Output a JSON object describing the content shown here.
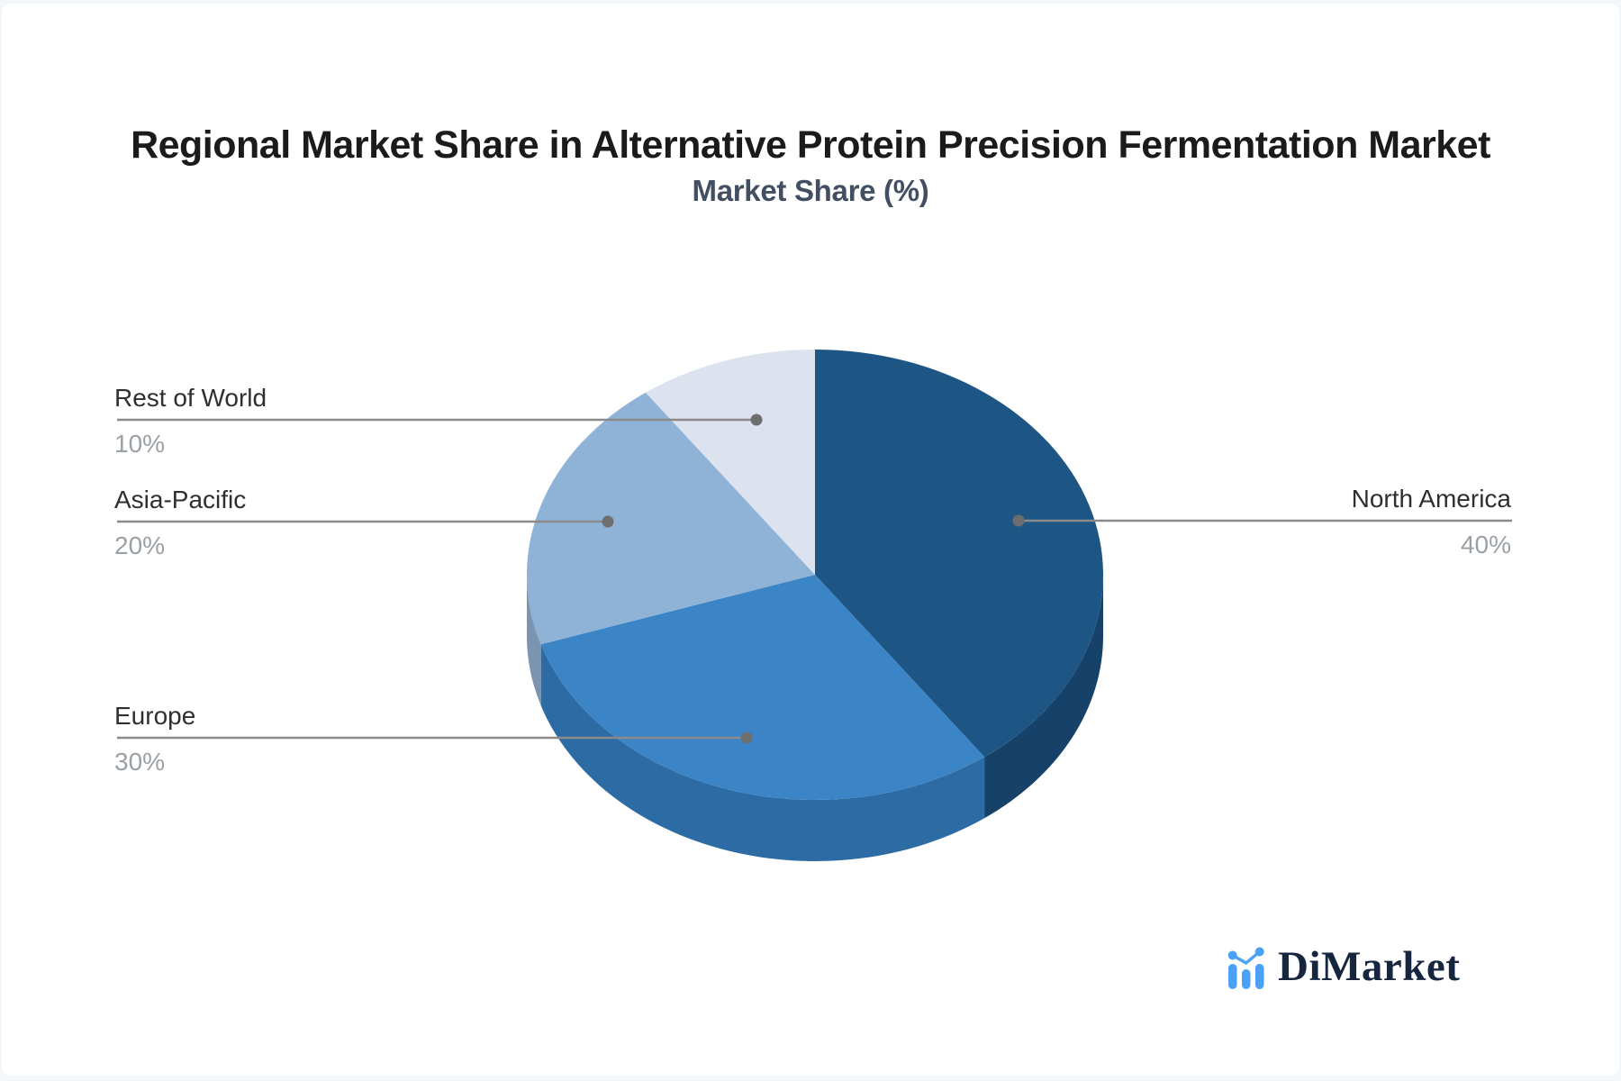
{
  "title": "Regional Market Share in Alternative Protein Precision Fermentation Market",
  "subtitle": "Market Share (%)",
  "chart_data": {
    "type": "pie",
    "title": "Regional Market Share in Alternative Protein Precision Fermentation Market",
    "subtitle": "Market Share (%)",
    "unit": "%",
    "style": "3d-pie",
    "start_angle_deg": 90,
    "direction": "clockwise",
    "legend_position": "callout-labels",
    "labels": [
      "North America",
      "Europe",
      "Asia-Pacific",
      "Rest of World"
    ],
    "values": [
      40,
      30,
      20,
      10
    ],
    "display_values": [
      "40%",
      "30%",
      "20%",
      "10%"
    ],
    "colors": [
      "#1D5585",
      "#3B85C7",
      "#8FB2D7",
      "#DCE3EF"
    ],
    "side_colors": [
      "#164169",
      "#2D6BA4",
      "#7B95B1",
      "#C3CCDD"
    ]
  },
  "callout": {
    "line_color": "#8A8A8A",
    "dot_color": "#6E6E6E"
  },
  "brand": {
    "name": "DiMarket",
    "icon": "bar-sparkline-logo-icon",
    "icon_color": "#4AA1F5",
    "text_color": "#17263F"
  }
}
